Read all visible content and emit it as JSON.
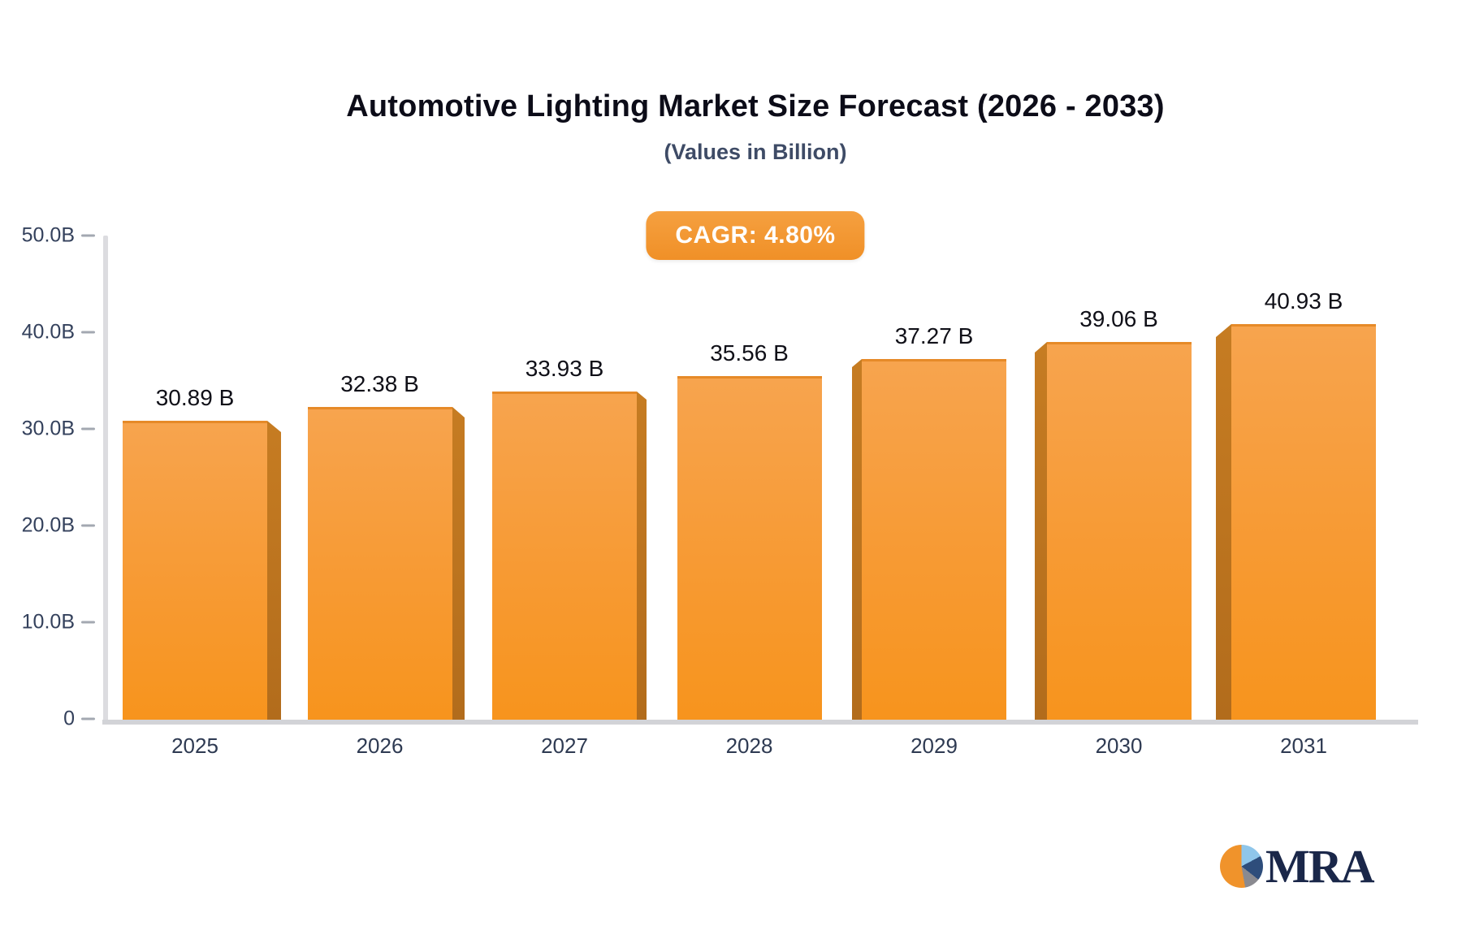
{
  "header": {
    "title": "Automotive Lighting Market Size Forecast (2026 - 2033)",
    "subtitle": "(Values in Billion)",
    "cagr_label": "CAGR: 4.80%"
  },
  "chart_data": {
    "type": "bar",
    "title": "Automotive Lighting Market Size Forecast (2026 - 2033)",
    "subtitle": "(Values in Billion)",
    "annotation": "CAGR: 4.80%",
    "categories": [
      "2025",
      "2026",
      "2027",
      "2028",
      "2029",
      "2030",
      "2031"
    ],
    "values": [
      30.89,
      32.38,
      33.93,
      35.56,
      37.27,
      39.06,
      40.93
    ],
    "value_labels": [
      "30.89 B",
      "32.38 B",
      "33.93 B",
      "35.56 B",
      "37.27 B",
      "39.06 B",
      "40.93 B"
    ],
    "yticks": [
      {
        "value": 50,
        "label": "50.0B"
      },
      {
        "value": 40,
        "label": "40.0B"
      },
      {
        "value": 30,
        "label": "30.0B"
      },
      {
        "value": 20,
        "label": "20.0B"
      },
      {
        "value": 10,
        "label": "10.0B"
      },
      {
        "value": 0,
        "label": "0"
      }
    ],
    "ylim": [
      0,
      50
    ],
    "grid": false,
    "legend": false,
    "bar_color": "#F7941D",
    "bar_side_color": "#BE7420",
    "unit": "Billion"
  },
  "branding": {
    "logo_text": "MRA",
    "logo_pie_colors": [
      "#F0932B",
      "#8FC6EA",
      "#2E4D7B",
      "#8A8A90"
    ]
  }
}
